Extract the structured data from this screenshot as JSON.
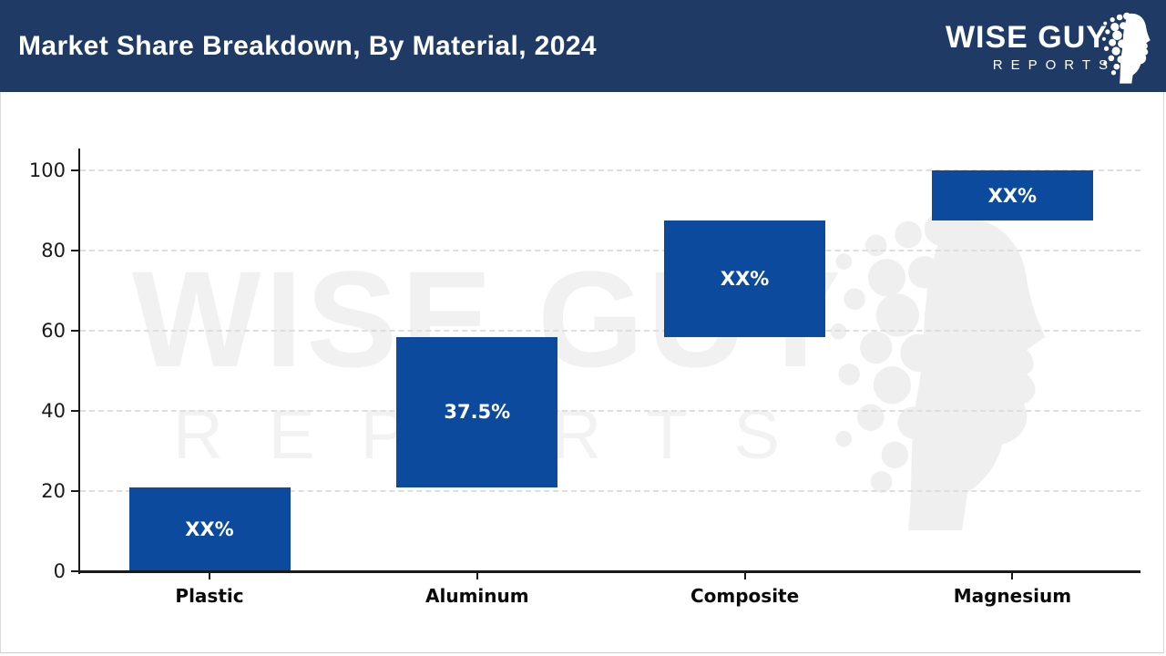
{
  "header": {
    "title": "Market Share Breakdown, By Material, 2024",
    "logo_line1": "WISE GUY",
    "logo_line2": "REPORTS",
    "bg_color": "#1f3a64"
  },
  "watermark": {
    "line1": "WISE GUY",
    "line2": "REPORTS"
  },
  "chart_data": {
    "type": "bar",
    "subtype": "floating-waterfall",
    "title": "Market Share Breakdown, By Material, 2024",
    "categories": [
      "Plastic",
      "Aluminum",
      "Composite",
      "Magnesium"
    ],
    "series": [
      {
        "name": "Market Share %",
        "segments": [
          {
            "category": "Plastic",
            "start": 0,
            "end": 21,
            "label": "XX%"
          },
          {
            "category": "Aluminum",
            "start": 21,
            "end": 58.5,
            "label": "37.5%"
          },
          {
            "category": "Composite",
            "start": 58.5,
            "end": 87.5,
            "label": "XX%"
          },
          {
            "category": "Magnesium",
            "start": 87.5,
            "end": 100,
            "label": "XX%"
          }
        ]
      }
    ],
    "y_ticks": [
      0,
      20,
      40,
      60,
      80,
      100
    ],
    "ylim": [
      0,
      105
    ],
    "xlabel": "",
    "ylabel": "",
    "grid": "horizontal-dashed",
    "legend": "none",
    "bar_color": "#0b4a9c",
    "bar_label_color": "#ffffff",
    "axis_color": "#1a1a1a",
    "gridline_color": "#dedede"
  }
}
